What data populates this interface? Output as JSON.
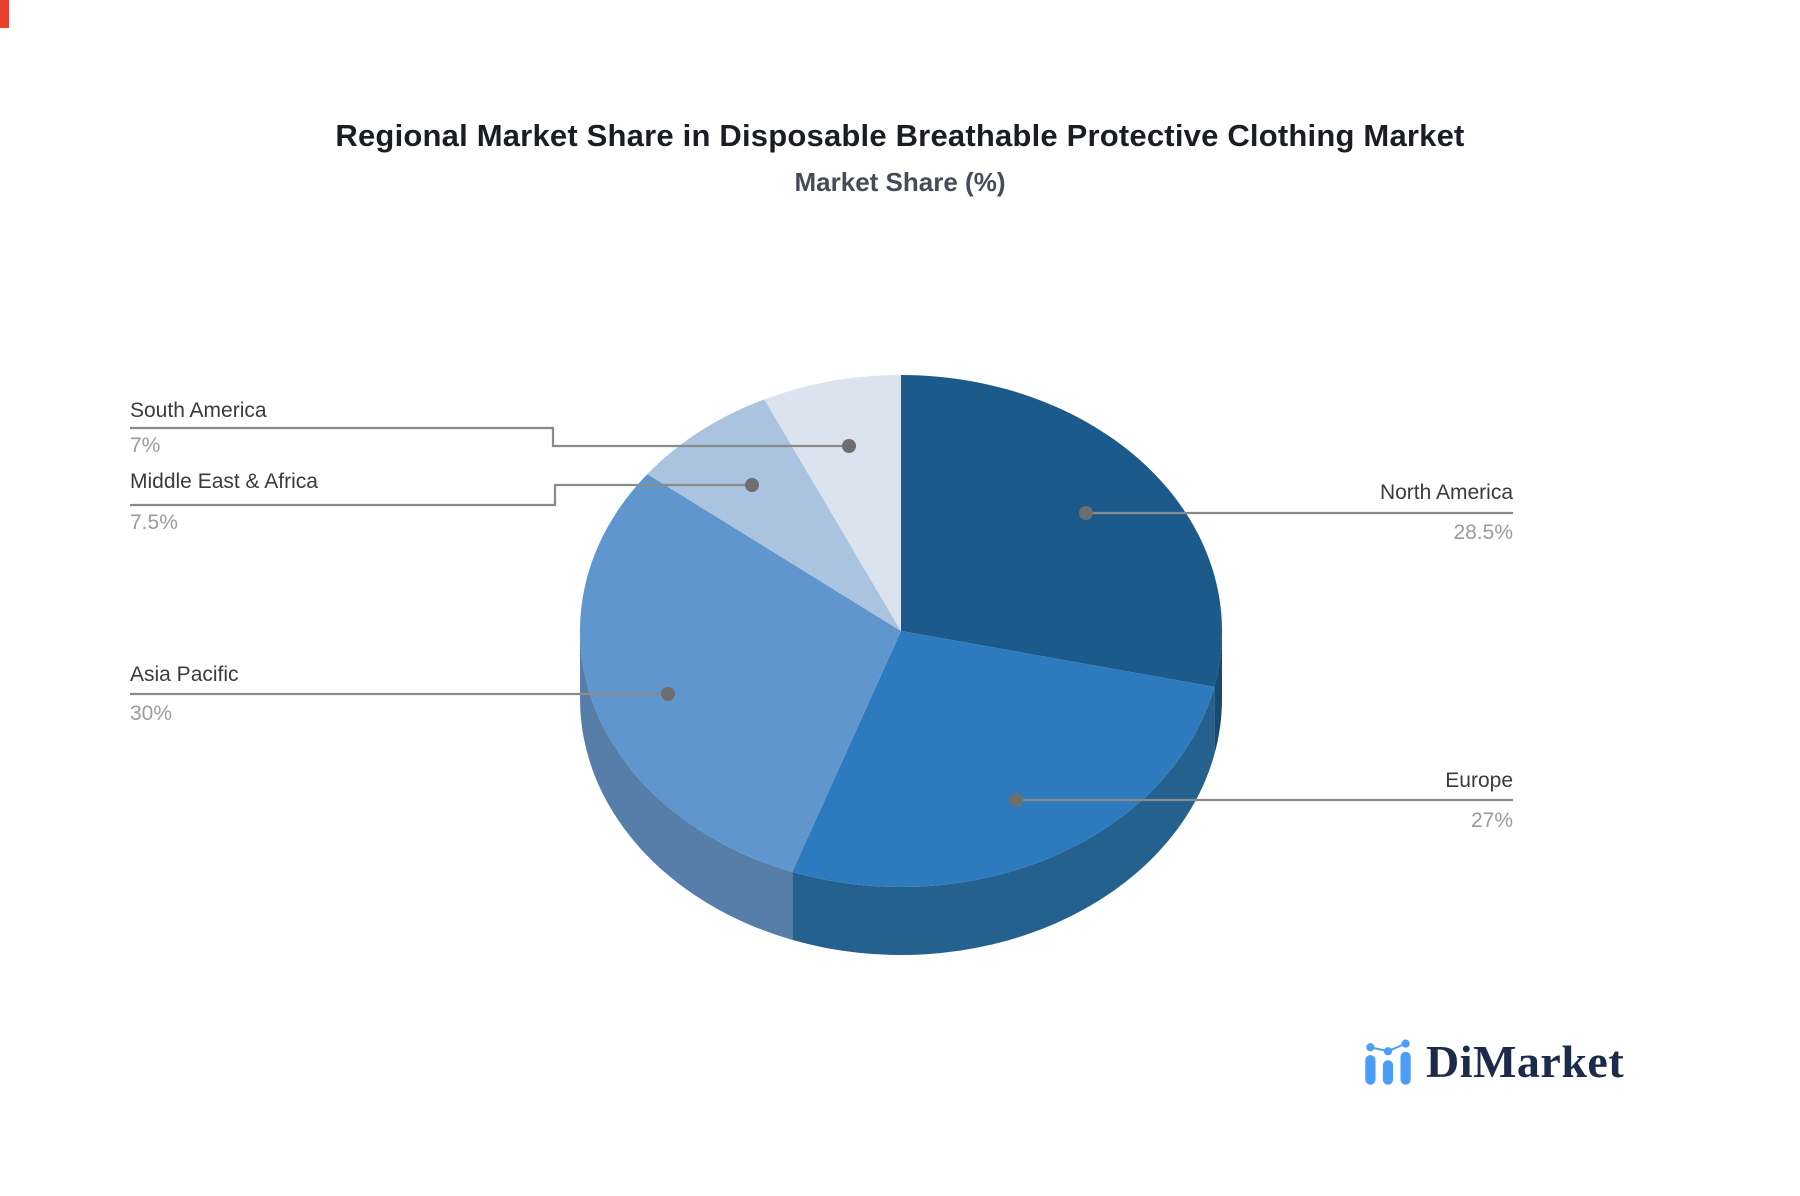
{
  "header": {
    "title": "Regional Market Share in Disposable Breathable Protective Clothing Market",
    "subtitle": "Market Share (%)"
  },
  "chart_data": {
    "type": "pie",
    "style": "3d-pie",
    "title": "Regional Market Share in Disposable Breathable Protective Clothing Market",
    "subtitle": "Market Share (%)",
    "unit": "%",
    "start_angle": "12 o'clock, clockwise",
    "legend": false,
    "leader_line_color": "#8a8a8a",
    "leader_dot_color": "#6e6e6e",
    "label_color": "#3b3b3b",
    "value_color": "#9b9b9b",
    "slices": [
      {
        "label": "North America",
        "value": 28.5,
        "display": "28.5%",
        "color": "#1d5a8c",
        "side_color": "#174a73",
        "label_side": "right"
      },
      {
        "label": "Europe",
        "value": 27,
        "display": "27%",
        "color": "#2e7abe",
        "side_color": "#25618f",
        "label_side": "right"
      },
      {
        "label": "Asia Pacific",
        "value": 30,
        "display": "30%",
        "color": "#6096ce",
        "side_color": "#567ea8",
        "label_side": "left"
      },
      {
        "label": "Middle East & Africa",
        "value": 7.5,
        "display": "7.5%",
        "color": "#aac4e0",
        "side_color": "#8fa9c2",
        "label_side": "left"
      },
      {
        "label": "South America",
        "value": 7,
        "display": "7%",
        "color": "#dbe3ee",
        "side_color": "#b8c2cf",
        "label_side": "left"
      }
    ]
  },
  "branding": {
    "logo_text": "DiMarket",
    "logo_icon": "bar-chart-trend-icon",
    "icon_color": "#4a9ef7",
    "text_color": "#1c2b4a"
  }
}
